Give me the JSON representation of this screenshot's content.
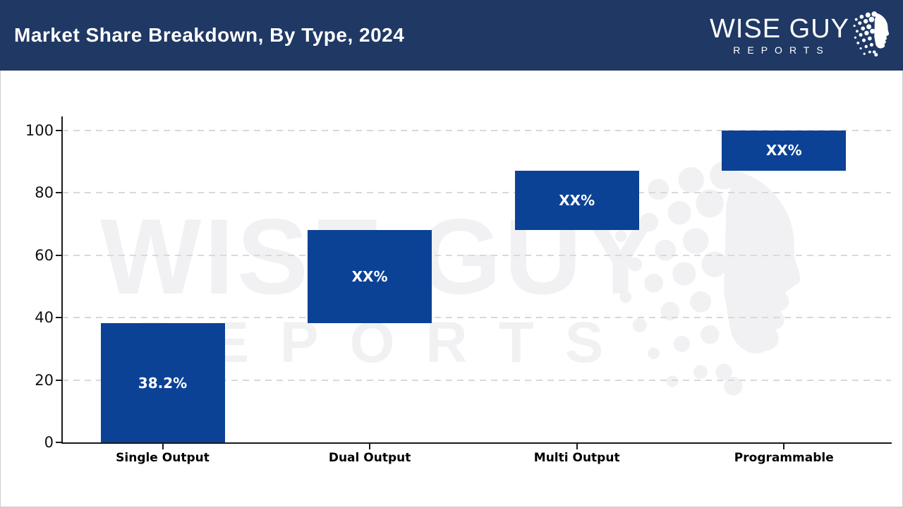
{
  "header": {
    "title": "Market Share Breakdown, By Type, 2024",
    "bg_color": "#1f3864",
    "logo": {
      "line1": "WISE GUY",
      "line2": "REPORTS"
    }
  },
  "watermark": {
    "line1": "WISE GUY",
    "line2": "REPORTS"
  },
  "chart_data": {
    "type": "bar",
    "subtype": "floating-waterfall",
    "title": "Market Share Breakdown, By Type, 2024",
    "categories": [
      "Single Output",
      "Dual Output",
      "Multi Output",
      "Programmable"
    ],
    "series": [
      {
        "name": "Market Share (%)",
        "segments": [
          {
            "category": "Single Output",
            "start": 0,
            "end": 38.2,
            "label": "38.2%"
          },
          {
            "category": "Dual Output",
            "start": 38.2,
            "end": 68,
            "label": "XX%"
          },
          {
            "category": "Multi Output",
            "start": 68,
            "end": 87.2,
            "label": "XX%"
          },
          {
            "category": "Programmable",
            "start": 87.2,
            "end": 100,
            "label": "XX%"
          }
        ]
      }
    ],
    "xlabel": "",
    "ylabel": "",
    "ylim": [
      0,
      100
    ],
    "yticks": [
      0,
      20,
      40,
      60,
      80,
      100
    ],
    "grid": "horizontal-dashed",
    "legend": "none",
    "bar_color": "#0c4296",
    "bar_label_color": "#ffffff",
    "gridline_color": "#d9d9d9",
    "axis_color": "#1a1a1a"
  }
}
